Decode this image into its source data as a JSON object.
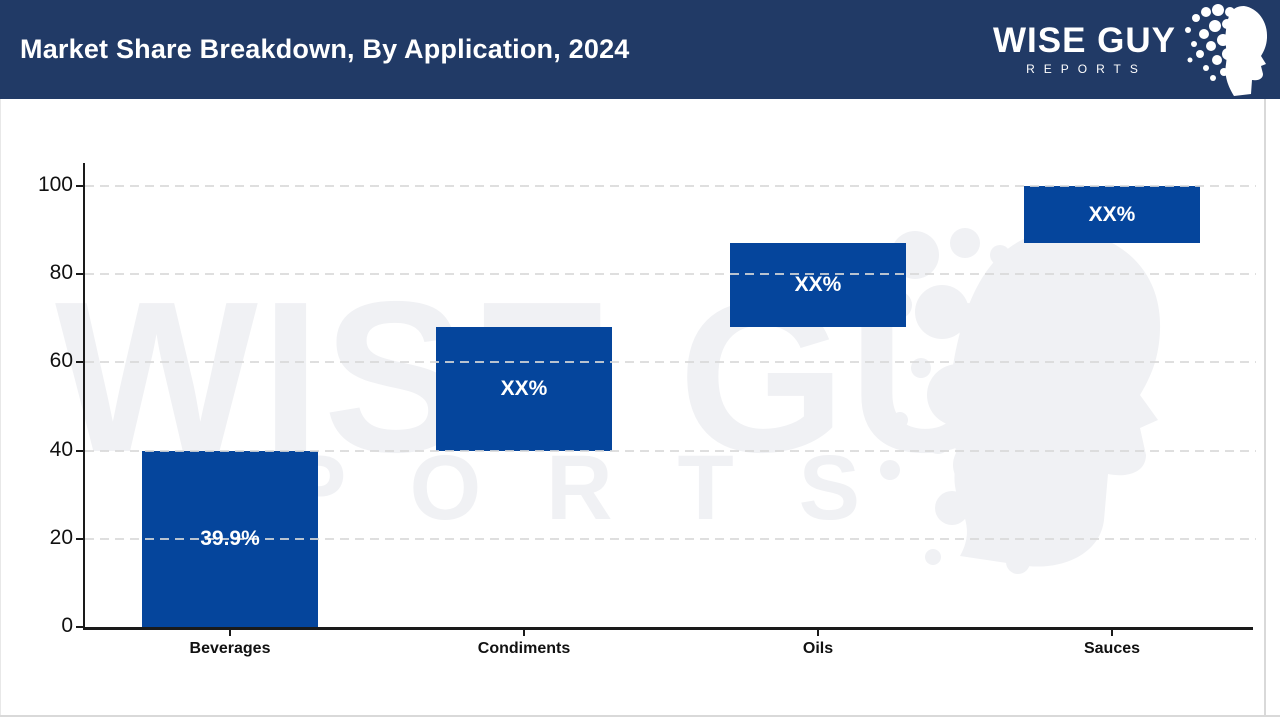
{
  "header": {
    "title": "Market Share Breakdown, By Application, 2024",
    "logo": {
      "line1": "WISE GUY",
      "line2": "REPORTS"
    }
  },
  "watermark": {
    "line1": "WISE GUY",
    "line2": "P O R T S"
  },
  "colors": {
    "header_bg": "#213a66",
    "bar": "#05459c",
    "grid": "#d9d9d9",
    "axis": "#1a1a1a",
    "text": "#111111",
    "bar_label": "#ffffff",
    "watermark": "#f0f1f4"
  },
  "chart_data": {
    "type": "bar",
    "subtype": "waterfall",
    "title": "Market Share Breakdown, By Application, 2024",
    "categories": [
      "Beverages",
      "Condiments",
      "Oils",
      "Sauces"
    ],
    "series": [
      {
        "name": "Market share (%)",
        "segments": [
          {
            "category": "Beverages",
            "start": 0,
            "end": 39.9,
            "label": "39.9%"
          },
          {
            "category": "Condiments",
            "start": 40,
            "end": 68,
            "label": "XX%"
          },
          {
            "category": "Oils",
            "start": 68,
            "end": 87,
            "label": "XX%"
          },
          {
            "category": "Sauces",
            "start": 87,
            "end": 100,
            "label": "XX%"
          }
        ]
      }
    ],
    "xlabel": "",
    "ylabel": "",
    "ylim": [
      0,
      100
    ],
    "yticks": [
      0,
      20,
      40,
      60,
      80,
      100
    ],
    "grid": "horizontal-dashed",
    "legend": false
  }
}
